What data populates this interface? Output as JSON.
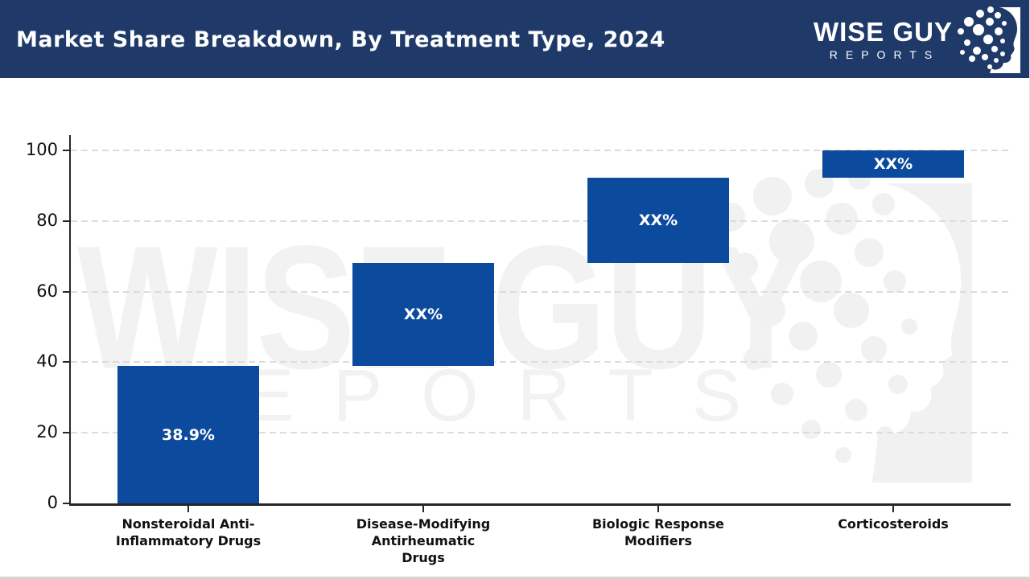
{
  "header": {
    "title": "Market Share Breakdown, By Treatment Type, 2024",
    "logo": {
      "line1": "WISE GUY",
      "line2": "REPORTS"
    }
  },
  "watermark": {
    "line1": "WISE GUY",
    "line2": "REPORTS"
  },
  "colors": {
    "header_bg": "#1F3A68",
    "bar": "#0C4A9E",
    "axis": "#262626",
    "grid": "#dcdcdc",
    "tick_label": "#111111",
    "bar_label": "#ffffff",
    "watermark": "#f2f2f2",
    "bottom_hairline": "#d5d5d5"
  },
  "chart_data": {
    "type": "bar",
    "subtype": "waterfall",
    "title": "Market Share Breakdown, By Treatment Type, 2024",
    "xlabel": "",
    "ylabel": "",
    "ylim": [
      0,
      100
    ],
    "yticks": [
      0,
      20,
      40,
      60,
      80,
      100
    ],
    "grid": "horizontal-dashed",
    "legend": "none",
    "bar_color": "#0C4A9E",
    "categories": [
      [
        "Nonsteroidal Anti-",
        "Inflammatory Drugs"
      ],
      [
        "Disease-Modifying",
        "Antirheumatic",
        "Drugs"
      ],
      [
        "Biologic Response",
        "Modifiers"
      ],
      [
        "Corticosteroids"
      ]
    ],
    "segments": [
      {
        "category": "Nonsteroidal Anti-Inflammatory Drugs",
        "start": 0,
        "end": 38.9,
        "label": "38.9%"
      },
      {
        "category": "Disease-Modifying Antirheumatic Drugs",
        "start": 38.9,
        "end": 68,
        "label": "XX%"
      },
      {
        "category": "Biologic Response Modifiers",
        "start": 68,
        "end": 92.3,
        "label": "XX%"
      },
      {
        "category": "Corticosteroids",
        "start": 92.3,
        "end": 100,
        "label": "XX%"
      }
    ]
  }
}
